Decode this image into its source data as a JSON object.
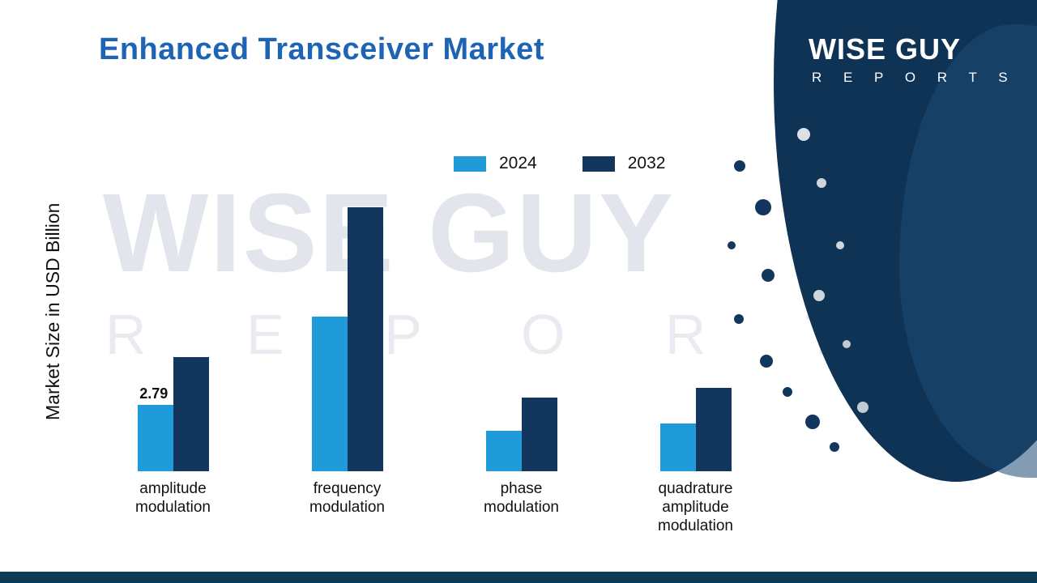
{
  "title": "Enhanced Transceiver Market",
  "logo": {
    "line1": "WISE GUY",
    "line2": "R E P O R T S"
  },
  "watermark": {
    "line1": "WISE GUY",
    "line2": "R E P O R T S"
  },
  "colors": {
    "title": "#1d64b4",
    "bar_2024": "#1e9bd8",
    "bar_2032": "#12365e",
    "bottom_bar": "#0c3a52",
    "logo_bg": "#0f3354"
  },
  "chart_data": {
    "type": "bar",
    "categories": [
      "amplitude modulation",
      "frequency modulation",
      "phase modulation",
      "quadrature amplitude modulation"
    ],
    "series": [
      {
        "name": "2024",
        "color": "#1e9bd8",
        "values": [
          2.79,
          6.5,
          1.7,
          2.0
        ],
        "data_labels": [
          "2.79",
          "",
          "",
          ""
        ]
      },
      {
        "name": "2032",
        "color": "#12365e",
        "values": [
          4.8,
          11.1,
          3.1,
          3.5
        ],
        "data_labels": [
          "",
          "",
          "",
          ""
        ]
      }
    ],
    "title": "Enhanced Transceiver Market",
    "xlabel": "",
    "ylabel": "Market Size in USD Billion",
    "ylim": [
      0,
      12
    ],
    "grid": false,
    "legend_position": "top"
  }
}
